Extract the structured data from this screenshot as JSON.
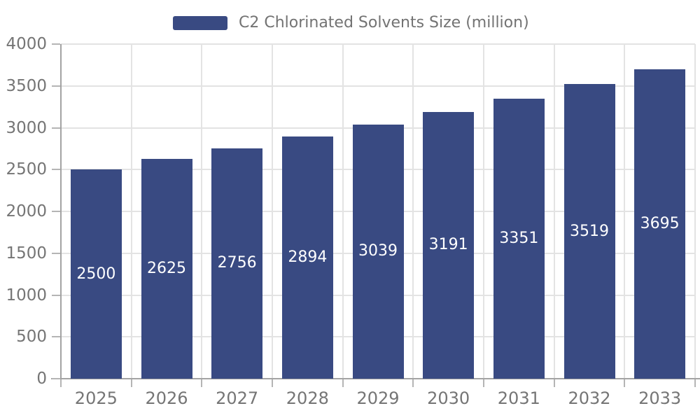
{
  "chart_data": {
    "type": "bar",
    "title": "C2 Chlorinated Solvents Size (million)",
    "xlabel": "",
    "ylabel": "",
    "categories": [
      "2025",
      "2026",
      "2027",
      "2028",
      "2029",
      "2030",
      "2031",
      "2032",
      "2033"
    ],
    "series": [
      {
        "name": "C2 Chlorinated Solvents Size (million)",
        "values": [
          2500,
          2625,
          2756,
          2894,
          3039,
          3191,
          3351,
          3519,
          3695
        ]
      }
    ],
    "value_labels_position": "inside-center",
    "ylim": [
      0,
      4000
    ],
    "ytick_step": 500,
    "ytick_labels": [
      "0",
      "500",
      "1000",
      "1500",
      "2000",
      "2500",
      "3000",
      "3500",
      "4000"
    ],
    "grid": true,
    "legend_position": "top-center",
    "colors": {
      "bar": "#394a82",
      "grid": "#e3e3e3",
      "axis": "#a3a3a3",
      "tick": "#b5b5b5",
      "label_text": "#757575",
      "value_text": "#ffffff",
      "legend_text": "#737373",
      "background": "#ffffff"
    }
  }
}
